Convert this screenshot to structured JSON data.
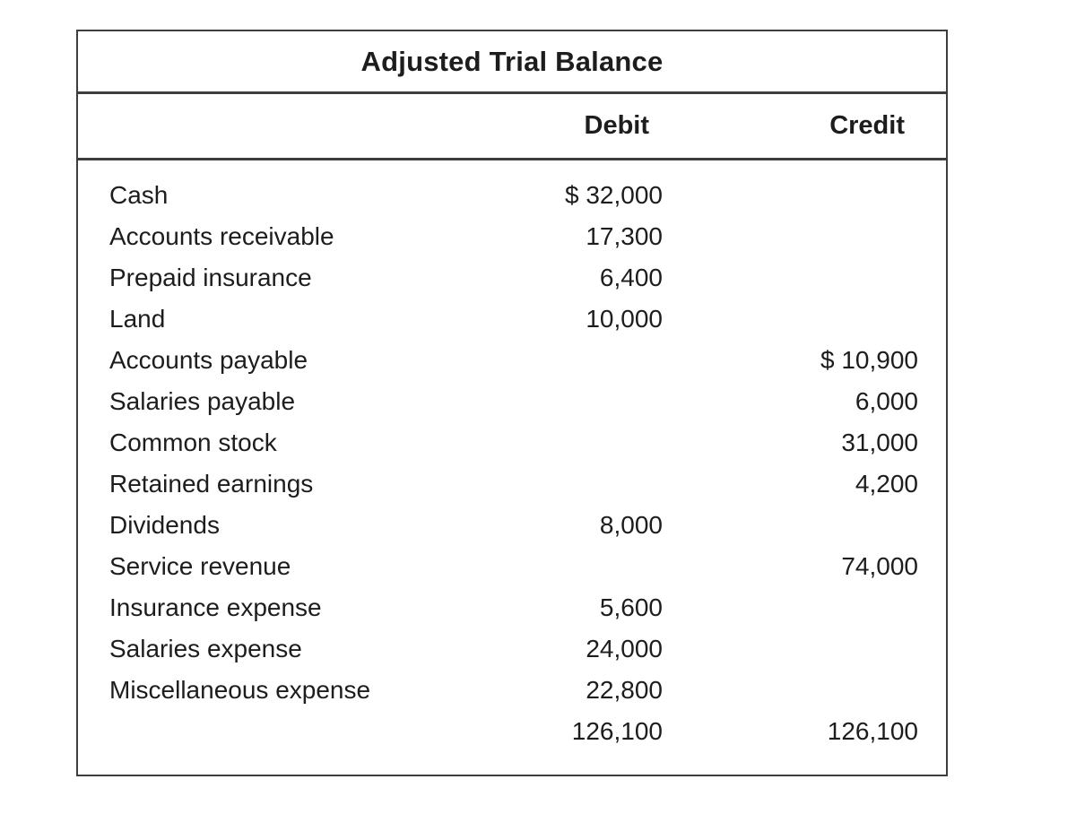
{
  "table": {
    "title": "Adjusted Trial Balance",
    "columns": {
      "debit": "Debit",
      "credit": "Credit"
    },
    "rows": [
      {
        "account": "Cash",
        "debit": "$ 32,000",
        "credit": ""
      },
      {
        "account": "Accounts receivable",
        "debit": "17,300",
        "credit": ""
      },
      {
        "account": "Prepaid insurance",
        "debit": "6,400",
        "credit": ""
      },
      {
        "account": "Land",
        "debit": "10,000",
        "credit": ""
      },
      {
        "account": "Accounts payable",
        "debit": "",
        "credit": "$ 10,900"
      },
      {
        "account": "Salaries payable",
        "debit": "",
        "credit": "6,000"
      },
      {
        "account": "Common stock",
        "debit": "",
        "credit": "31,000"
      },
      {
        "account": "Retained earnings",
        "debit": "",
        "credit": "4,200"
      },
      {
        "account": "Dividends",
        "debit": "8,000",
        "credit": ""
      },
      {
        "account": "Service revenue",
        "debit": "",
        "credit": "74,000"
      },
      {
        "account": "Insurance expense",
        "debit": "5,600",
        "credit": ""
      },
      {
        "account": "Salaries expense",
        "debit": "24,000",
        "credit": ""
      },
      {
        "account": "Miscellaneous expense",
        "debit": "22,800",
        "credit": ""
      }
    ],
    "totals": {
      "debit": "126,100",
      "credit": "126,100"
    }
  },
  "colors": {
    "border": "#3d3d3d",
    "text": "#1d1d1d",
    "background": "#ffffff"
  }
}
